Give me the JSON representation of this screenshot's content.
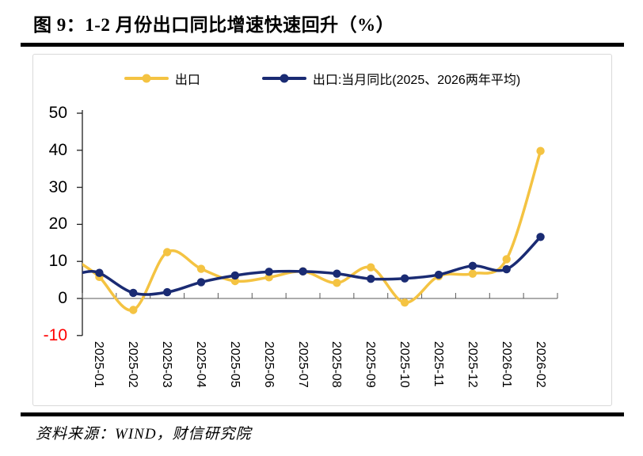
{
  "title": "图 9：1-2 月份出口同比增速快速回升（%）",
  "source": "资料来源：WIND，财信研究院",
  "colors": {
    "export_line": "#F4C342",
    "average_line": "#1A2B73",
    "negative_tick": "#FF0000",
    "axis": "#1F1F1F",
    "tick": "#595959",
    "box_border": "#D9D9D9",
    "rule": "#000000"
  },
  "chart_data": {
    "type": "line",
    "categories": [
      "2025-01",
      "2025-02",
      "2025-03",
      "2025-04",
      "2025-05",
      "2025-06",
      "2025-07",
      "2025-08",
      "2025-09",
      "2025-10",
      "2025-11",
      "2025-12",
      "2026-01",
      "2026-02"
    ],
    "series": [
      {
        "name": "出口",
        "color": "#F4C342",
        "values": [
          5.8,
          -3.1,
          12.5,
          8.0,
          4.7,
          5.7,
          7.3,
          4.2,
          8.4,
          -1.1,
          6.0,
          6.7,
          10.6,
          39.8
        ],
        "left_edge_value": 9.2
      },
      {
        "name": "出口:当月同比(2025、2026两年平均)",
        "color": "#1A2B73",
        "values": [
          6.9,
          1.5,
          1.7,
          4.4,
          6.2,
          7.2,
          7.3,
          6.7,
          5.3,
          5.4,
          6.4,
          8.8,
          7.9,
          16.6
        ],
        "left_edge_value": 7.0
      }
    ],
    "ylim": [
      -10,
      50
    ],
    "yticks": [
      50,
      40,
      30,
      20,
      10,
      0,
      -10
    ],
    "negative_tick_color": "#FF0000",
    "grid": false,
    "smooth_lines": true,
    "legend_position": "top"
  }
}
